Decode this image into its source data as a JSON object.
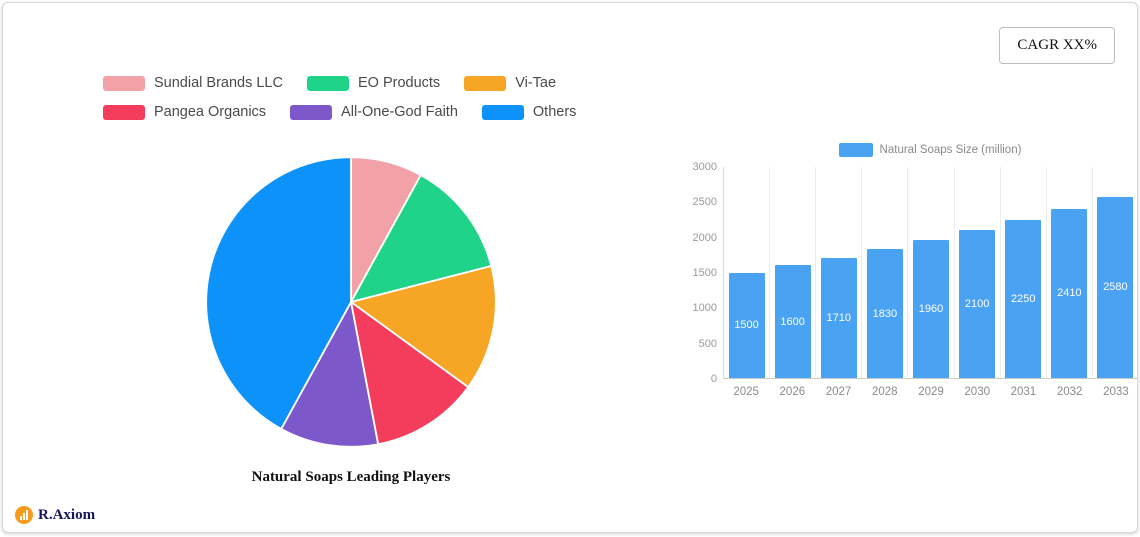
{
  "card": {
    "cagr_label": "CAGR XX%"
  },
  "logo": {
    "text": "R.Axiom"
  },
  "chart_data": [
    {
      "type": "pie",
      "title": "Natural Soaps Leading Players",
      "legend_position": "top-left",
      "slices": [
        {
          "label": "Sundial Brands LLC",
          "value": 8,
          "color": "#f2a2a6"
        },
        {
          "label": "EO Products",
          "value": 13,
          "color": "#1fd489"
        },
        {
          "label": "Vi-Tae",
          "value": 14,
          "color": "#f7a524"
        },
        {
          "label": "Pangea Organics",
          "value": 12,
          "color": "#f43d5d"
        },
        {
          "label": "All-One-God Faith",
          "value": 11,
          "color": "#7d58cb"
        },
        {
          "label": "Others",
          "value": 42,
          "color": "#0d92fa"
        }
      ]
    },
    {
      "type": "bar",
      "series_name": "Natural Soaps Size (million)",
      "categories": [
        "2025",
        "2026",
        "2027",
        "2028",
        "2029",
        "2030",
        "2031",
        "2032",
        "2033"
      ],
      "values": [
        1500,
        1600,
        1710,
        1830,
        1960,
        2100,
        2250,
        2410,
        2580
      ],
      "ylim": [
        0,
        3000
      ],
      "yticks": [
        0,
        500,
        1000,
        1500,
        2000,
        2500,
        3000
      ],
      "bar_color": "#4aa2f3",
      "grid": true,
      "legend_position": "top"
    }
  ]
}
